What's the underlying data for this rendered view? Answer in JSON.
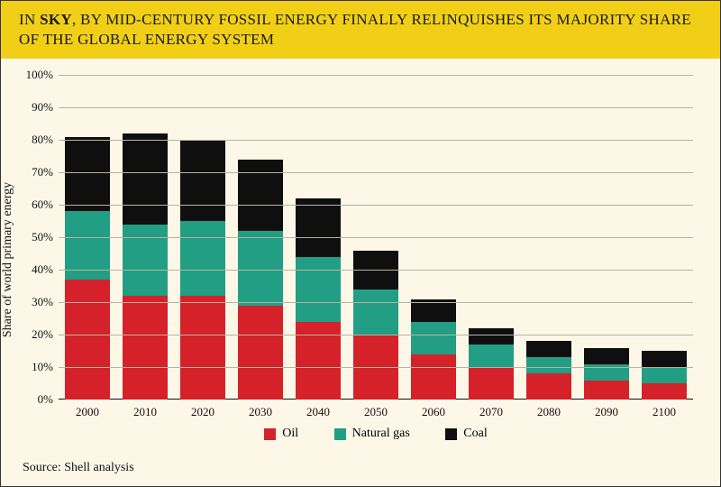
{
  "title": {
    "prefix": "IN ",
    "bold": "SKY",
    "rest": ", BY MID-CENTURY FOSSIL ENERGY FINALLY RELINQUISHES ITS MAJORITY SHARE OF THE GLOBAL ENERGY SYSTEM"
  },
  "colors": {
    "title_bg": "#f1cf17",
    "title_text": "#1a1a1a",
    "chart_bg": "#fdf7e8",
    "grid": "#b8b2a1",
    "axis": "#111111",
    "oil": "#d5212a",
    "gas": "#219e83",
    "coal": "#0f0f0f"
  },
  "chart": {
    "type": "stacked-bar",
    "ylabel": "Share of world primary energy",
    "ylim": [
      0,
      100
    ],
    "ytick_step": 10,
    "ytick_suffix": "%",
    "bar_width_pct": 78,
    "years": [
      "2000",
      "2010",
      "2020",
      "2030",
      "2040",
      "2050",
      "2060",
      "2070",
      "2080",
      "2090",
      "2100"
    ],
    "series": [
      {
        "key": "oil",
        "label": "Oil",
        "color_key": "oil",
        "values": [
          37,
          32,
          32,
          29,
          24,
          20,
          14,
          10,
          8,
          6,
          5
        ]
      },
      {
        "key": "gas",
        "label": "Natural gas",
        "color_key": "gas",
        "values": [
          21,
          22,
          23,
          23,
          20,
          14,
          10,
          7,
          5,
          5,
          5
        ]
      },
      {
        "key": "coal",
        "label": "Coal",
        "color_key": "coal",
        "values": [
          23,
          28,
          25,
          22,
          18,
          12,
          7,
          5,
          5,
          5,
          5
        ]
      }
    ]
  },
  "source": {
    "label": "Source:",
    "text": "Shell analysis"
  }
}
